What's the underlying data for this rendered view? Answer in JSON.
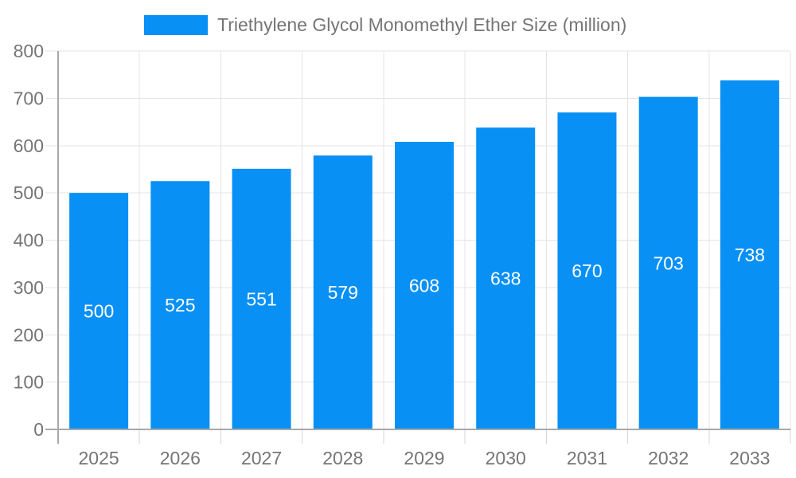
{
  "legend": {
    "label": "Triethylene Glycol Monomethyl Ether Size (million)"
  },
  "chart_data": {
    "type": "bar",
    "title": "Triethylene Glycol Monomethyl Ether Size (million)",
    "categories": [
      "2025",
      "2026",
      "2027",
      "2028",
      "2029",
      "2030",
      "2031",
      "2032",
      "2033"
    ],
    "values": [
      500,
      525,
      551,
      579,
      608,
      638,
      670,
      703,
      738
    ],
    "xlabel": "",
    "ylabel": "",
    "ylim": [
      0,
      800
    ],
    "ytick_step": 100,
    "grid": true,
    "legend_position": "top",
    "value_labels": "inside-center",
    "colors": {
      "bar": "#0890F5",
      "value_label": "#ffffff",
      "axis": "#a8a8a8",
      "gridline": "#e4e4e4",
      "tick": "#d6d6d6",
      "text": "#757575"
    }
  }
}
